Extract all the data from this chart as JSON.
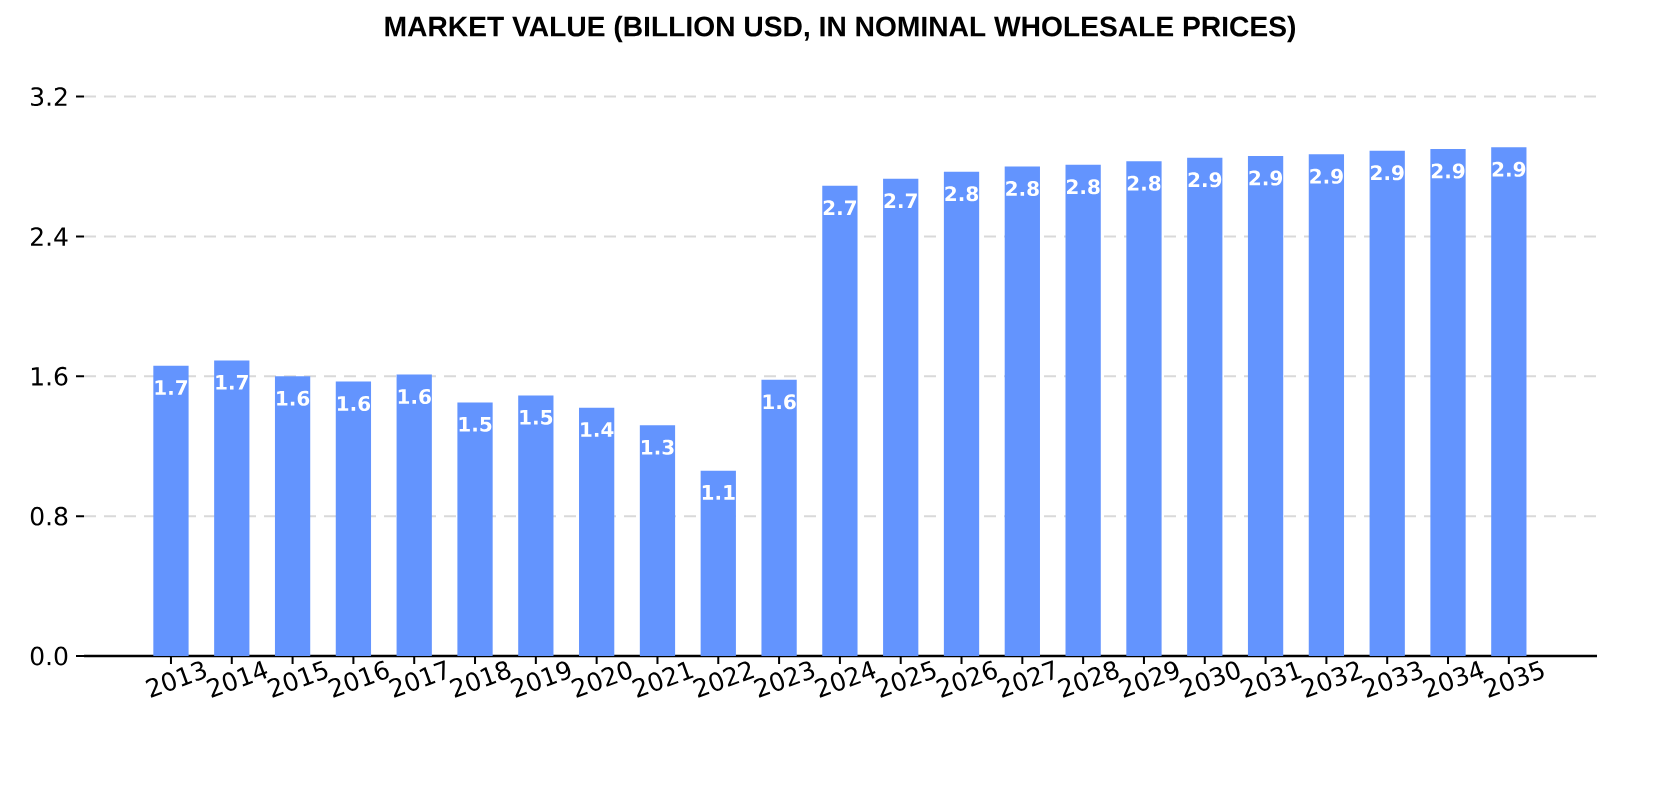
{
  "chart_data": {
    "type": "bar",
    "title": "MARKET VALUE (BILLION USD, IN NOMINAL WHOLESALE PRICES)",
    "categories": [
      "2013",
      "2014",
      "2015",
      "2016",
      "2017",
      "2018",
      "2019",
      "2020",
      "2021",
      "2022",
      "2023",
      "2024",
      "2025",
      "2026",
      "2027",
      "2028",
      "2029",
      "2030",
      "2031",
      "2032",
      "2033",
      "2034",
      "2035"
    ],
    "values": [
      1.66,
      1.69,
      1.6,
      1.57,
      1.61,
      1.45,
      1.49,
      1.42,
      1.32,
      1.06,
      1.58,
      2.69,
      2.73,
      2.77,
      2.8,
      2.81,
      2.83,
      2.85,
      2.86,
      2.87,
      2.89,
      2.9,
      2.91
    ],
    "value_labels": [
      "1.7",
      "1.7",
      "1.6",
      "1.6",
      "1.6",
      "1.5",
      "1.5",
      "1.4",
      "1.3",
      "1.1",
      "1.6",
      "2.7",
      "2.7",
      "2.8",
      "2.8",
      "2.8",
      "2.8",
      "2.9",
      "2.9",
      "2.9",
      "2.9",
      "2.9",
      "2.9"
    ],
    "color": "#6394fe",
    "ylim": [
      0,
      3.2
    ],
    "yticks": [
      {
        "value": 0,
        "label": "0.0"
      },
      0.8,
      1.6,
      2.4,
      3.2
    ],
    "grid": "y"
  }
}
